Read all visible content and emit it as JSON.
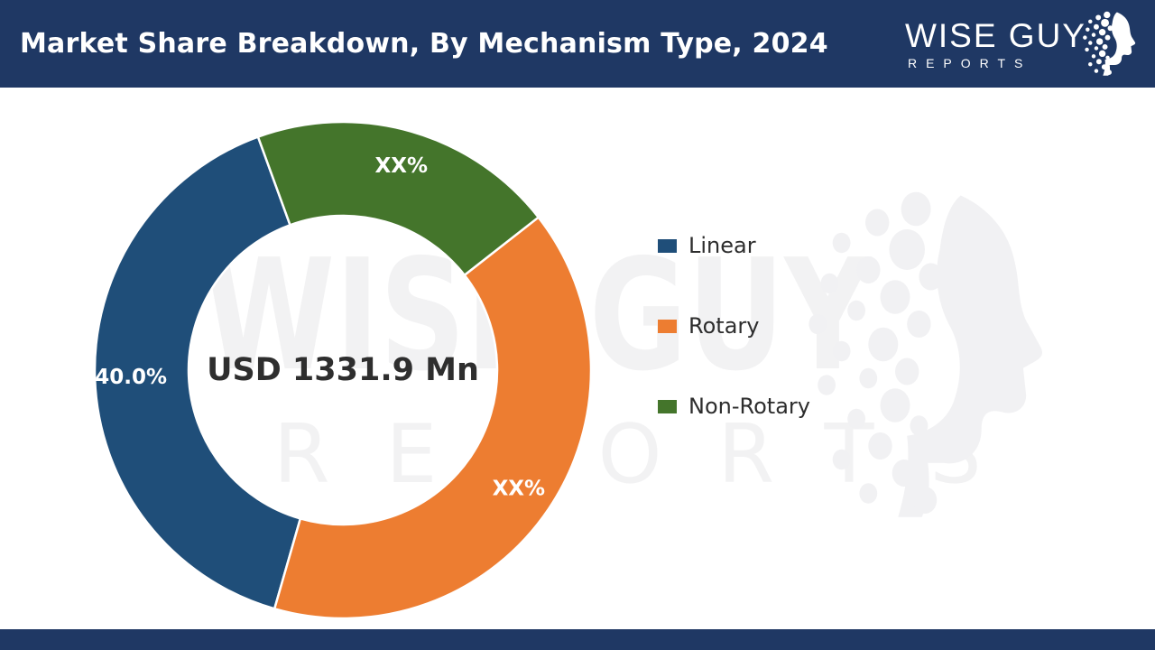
{
  "header": {
    "title": "Market Share Breakdown, By Mechanism Type, 2024",
    "background_color": "#1F3864",
    "logo": {
      "line1": "WISE GUY",
      "line2": "REPORTS"
    }
  },
  "watermark": {
    "line1": "WISE GUY",
    "line2": "REPORTS"
  },
  "chart_data": {
    "type": "pie",
    "subtype": "donut",
    "title": "Market Share Breakdown, By Mechanism Type, 2024",
    "center_label": "USD 1331.9 Mn",
    "legend_position": "right",
    "donut_hole_ratio": 0.62,
    "start_angle_deg": 110,
    "direction": "counterclockwise",
    "segments": [
      {
        "label": "Linear",
        "display_value": "40.0%",
        "percent_visual": 40.0,
        "color": "#1F4E79"
      },
      {
        "label": "Rotary",
        "display_value": "XX%",
        "percent_visual": 40.0,
        "color": "#ED7D31"
      },
      {
        "label": "Non-Rotary",
        "display_value": "XX%",
        "percent_visual": 20.0,
        "color": "#44752B"
      }
    ]
  },
  "footer": {
    "background_color": "#1F3864"
  }
}
